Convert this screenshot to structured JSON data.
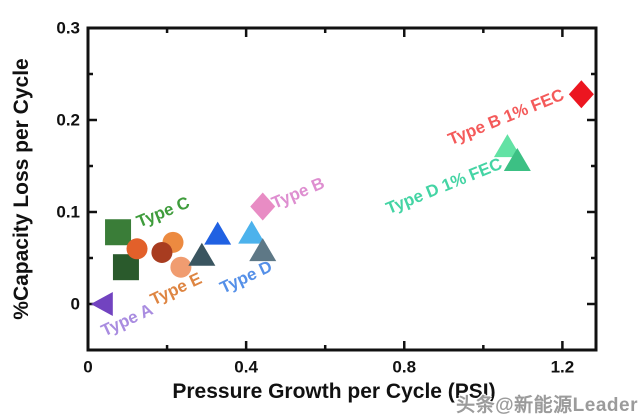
{
  "chart_data": {
    "type": "scatter",
    "title": "",
    "xlabel": "Pressure Growth per Cycle (PSI)",
    "ylabel": "%Capacity Loss per Cycle",
    "xlim": [
      0,
      1.285
    ],
    "ylim": [
      -0.05,
      0.3
    ],
    "grid": false,
    "legend_position": "none (inline rotated color-coded labels)",
    "x_major_ticks": [
      0,
      0.4,
      0.8,
      1.2
    ],
    "x_minor_ticks": [
      0.2,
      0.6,
      1.0
    ],
    "x_tick_labels": [
      "0",
      "0.4",
      "0.8",
      "1.2"
    ],
    "y_major_ticks": [
      0,
      0.1,
      0.2,
      0.3
    ],
    "y_minor_ticks": [
      0.05,
      0.15,
      0.25
    ],
    "y_tick_labels": [
      "0",
      "0.1",
      "0.2",
      "0.3"
    ],
    "frame_color": "#111111",
    "series": [
      {
        "name": "Type A",
        "marker": "triangle-left",
        "points": [
          {
            "x": 0.04,
            "y": 0.0,
            "color": "#7243c0"
          }
        ]
      },
      {
        "name": "Type C",
        "marker": "square",
        "points": [
          {
            "x": 0.076,
            "y": 0.078,
            "color": "#3a7d38"
          },
          {
            "x": 0.096,
            "y": 0.04,
            "color": "#2a5a2c"
          }
        ]
      },
      {
        "name": "Type E",
        "marker": "circle",
        "points": [
          {
            "x": 0.215,
            "y": 0.067,
            "color": "#ec8a40"
          },
          {
            "x": 0.124,
            "y": 0.06,
            "color": "#e2602a"
          },
          {
            "x": 0.187,
            "y": 0.056,
            "color": "#a83c20"
          },
          {
            "x": 0.235,
            "y": 0.04,
            "color": "#f09c70"
          }
        ]
      },
      {
        "name": "Type D",
        "marker": "triangle-up",
        "points": [
          {
            "x": 0.288,
            "y": 0.053,
            "color": "#3a5560"
          },
          {
            "x": 0.328,
            "y": 0.076,
            "color": "#2061e2"
          },
          {
            "x": 0.414,
            "y": 0.077,
            "color": "#4cb2ec"
          },
          {
            "x": 0.442,
            "y": 0.058,
            "color": "#5e7886"
          }
        ]
      },
      {
        "name": "Type B",
        "marker": "diamond",
        "points": [
          {
            "x": 0.442,
            "y": 0.106,
            "color": "#e88cc4"
          }
        ]
      },
      {
        "name": "Type D 1% FEC",
        "marker": "triangle-up",
        "points": [
          {
            "x": 1.061,
            "y": 0.171,
            "color": "#62e2a4"
          },
          {
            "x": 1.086,
            "y": 0.156,
            "color": "#3cc084"
          }
        ]
      },
      {
        "name": "Type B 1% FEC",
        "marker": "diamond",
        "points": [
          {
            "x": 1.248,
            "y": 0.228,
            "color": "#ec1620"
          }
        ]
      }
    ],
    "annotations": [
      {
        "text": "Type A",
        "color": "#a98ce0",
        "x": 0.099,
        "y": -0.017,
        "rotation": -25
      },
      {
        "text": "Type C",
        "color": "#3f9c3c",
        "x": 0.19,
        "y": 0.1,
        "rotation": -22
      },
      {
        "text": "Type E",
        "color": "#de8542",
        "x": 0.223,
        "y": 0.016,
        "rotation": -25
      },
      {
        "text": "Type D",
        "color": "#5590e8",
        "x": 0.4,
        "y": 0.029,
        "rotation": -25
      },
      {
        "text": "Type B",
        "color": "#de8ed0",
        "x": 0.53,
        "y": 0.121,
        "rotation": -23
      },
      {
        "text": "Type D 1% FEC",
        "color": "#44d4a4",
        "x": 0.9,
        "y": 0.128,
        "rotation": -22
      },
      {
        "text": "Type B 1% FEC",
        "color": "#f45a5a",
        "x": 1.058,
        "y": 0.203,
        "rotation": -22
      }
    ]
  },
  "watermark": {
    "text": "头条@新能源Leader",
    "color": "#9b9b9b"
  }
}
